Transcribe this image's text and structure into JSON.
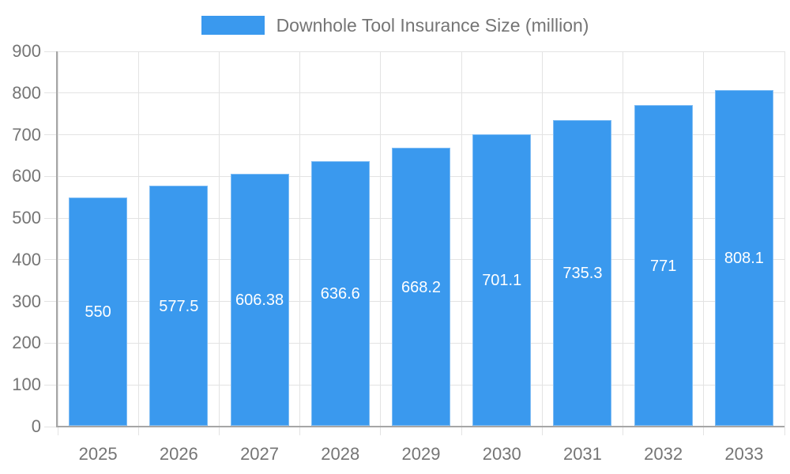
{
  "legend": {
    "label": "Downhole Tool Insurance Size (million)"
  },
  "chart_data": {
    "type": "bar",
    "title": "Downhole Tool Insurance Size (million)",
    "categories": [
      "2025",
      "2026",
      "2027",
      "2028",
      "2029",
      "2030",
      "2031",
      "2032",
      "2033"
    ],
    "values": [
      550,
      577.5,
      606.38,
      636.6,
      668.2,
      701.1,
      735.3,
      771,
      808.1
    ],
    "series": [
      {
        "name": "Downhole Tool Insurance Size (million)",
        "values": [
          550,
          577.5,
          606.38,
          636.6,
          668.2,
          701.1,
          735.3,
          771,
          808.1
        ]
      }
    ],
    "xlabel": "",
    "ylabel": "",
    "ylim": [
      0,
      900
    ],
    "ytick_step": 100,
    "yticks": [
      0,
      100,
      200,
      300,
      400,
      500,
      600,
      700,
      800,
      900
    ],
    "grid": true,
    "legend_position": "top",
    "bar_value_labels_inside": true,
    "colors": {
      "bar": "#3A99EE",
      "bar_label": "#FFFFFF",
      "axis_text": "#757575",
      "grid": "#E3E3E3",
      "axis_line": "#A6A6A6"
    }
  }
}
